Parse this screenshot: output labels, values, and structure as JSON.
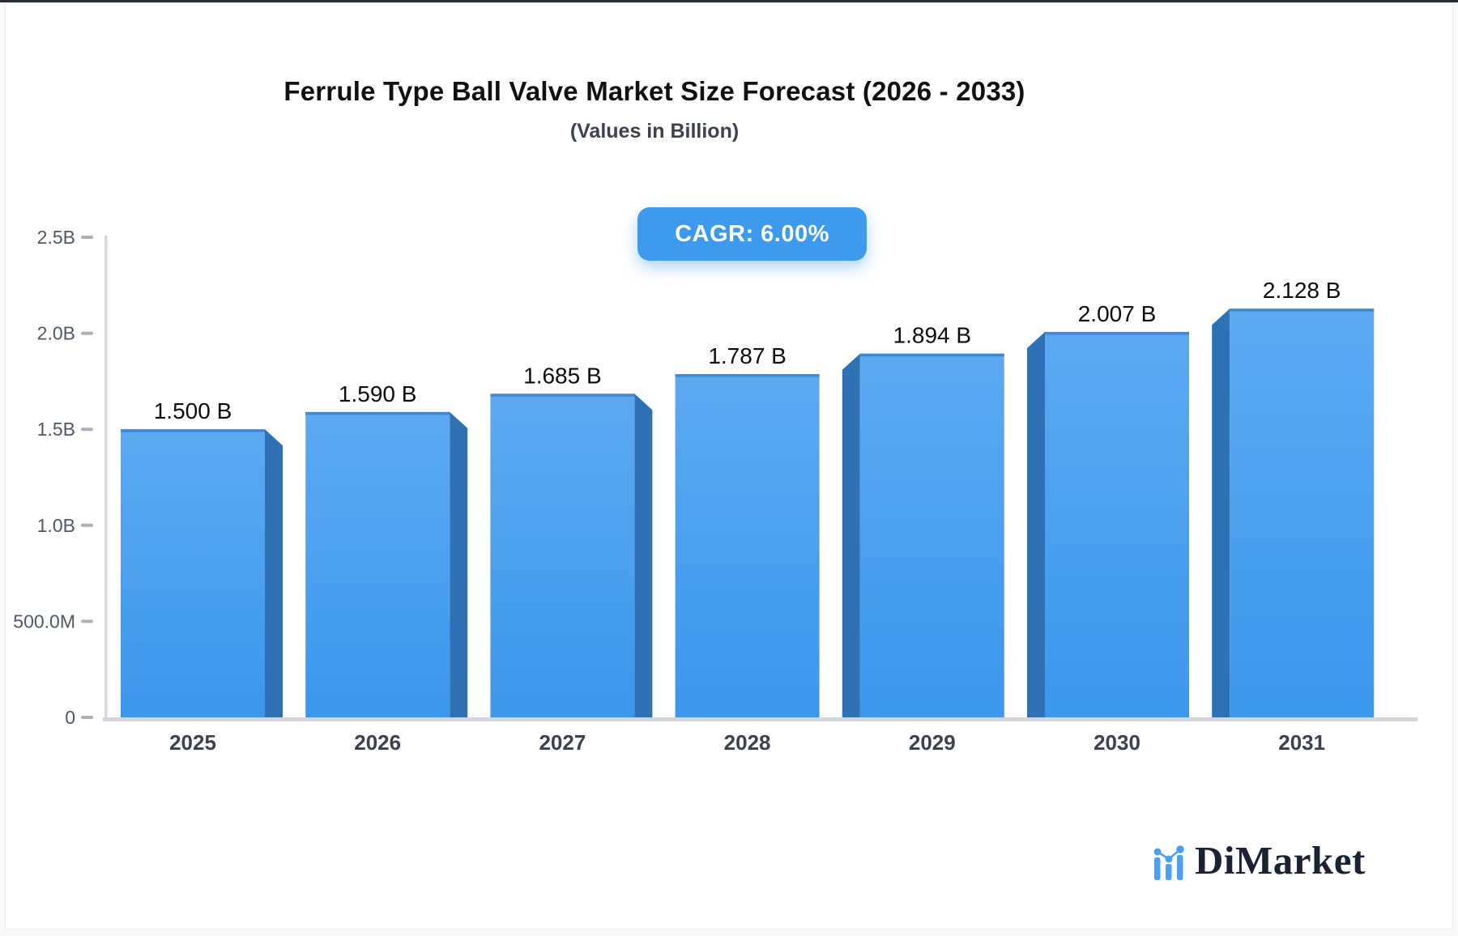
{
  "header": {
    "title": "Ferrule Type Ball Valve Market Size Forecast (2026 - 2033)",
    "subtitle": "(Values in Billion)",
    "cagr_label": "CAGR: 6.00%"
  },
  "brand": {
    "name": "DiMarket",
    "icon": "dimarket-bars-trend-icon"
  },
  "colors": {
    "accent": "#3d9aee",
    "bar_face_top": "#5ca9f1",
    "bar_face_bottom": "#3b97ed",
    "bar_side": "#2e72b4",
    "bar_top_edge": "#4187d6",
    "axis_line": "#d5d8dd",
    "baseline": "#d2d5da",
    "tick_mark": "#aab1bb",
    "tick_text": "#4e5968",
    "value_text": "#0a0c10",
    "category_text": "#3a4252",
    "badge_bg": "#3d9aee",
    "badge_text": "#ffffff",
    "logo_blue": "#4aa0f5",
    "logo_text": "#1a2334"
  },
  "chart_data": {
    "type": "bar",
    "title": "Ferrule Type Ball Valve Market Size Forecast (2026 - 2033)",
    "subtitle": "(Values in Billion)",
    "annotation": "CAGR: 6.00%",
    "categories": [
      "2025",
      "2026",
      "2027",
      "2028",
      "2029",
      "2030",
      "2031"
    ],
    "values": [
      1.5,
      1.59,
      1.685,
      1.787,
      1.894,
      2.007,
      2.128
    ],
    "value_labels": [
      "1.500 B",
      "1.590 B",
      "1.685 B",
      "1.787 B",
      "1.894 B",
      "2.007 B",
      "2.128 B"
    ],
    "unit": "Billion",
    "xlabel": "",
    "ylabel": "",
    "ylim": [
      0,
      2.5
    ],
    "yticks": [
      {
        "v": 0,
        "label": "0"
      },
      {
        "v": 0.5,
        "label": "500.0M"
      },
      {
        "v": 1.0,
        "label": "1.0B"
      },
      {
        "v": 1.5,
        "label": "1.5B"
      },
      {
        "v": 2.0,
        "label": "2.0B"
      },
      {
        "v": 2.5,
        "label": "2.5B"
      }
    ],
    "grid": false,
    "legend": false,
    "bar_style": "3d"
  }
}
